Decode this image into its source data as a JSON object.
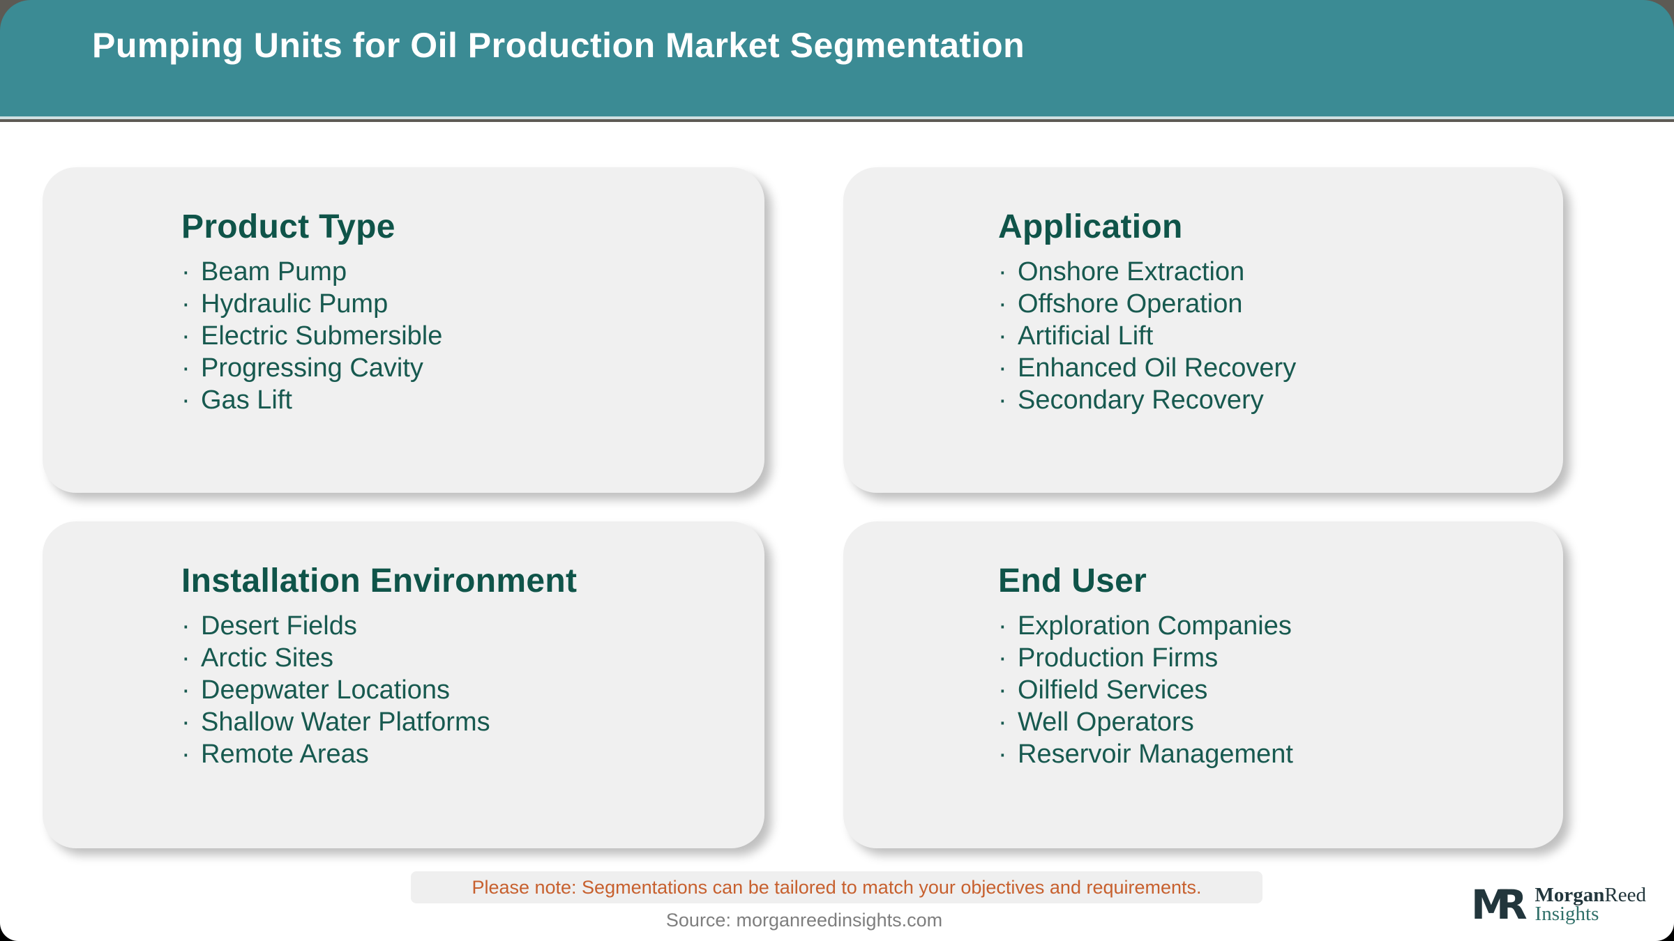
{
  "header": {
    "title": "Pumping Units for Oil Production Market Segmentation"
  },
  "bullet_char": "·",
  "cards": [
    {
      "title": "Product Type",
      "items": [
        "Beam Pump",
        "Hydraulic Pump",
        "Electric Submersible",
        "Progressing Cavity",
        "Gas Lift"
      ]
    },
    {
      "title": "Application",
      "items": [
        "Onshore Extraction",
        "Offshore Operation",
        "Artificial Lift",
        "Enhanced Oil Recovery",
        "Secondary Recovery"
      ]
    },
    {
      "title": "Installation Environment",
      "items": [
        "Desert Fields",
        "Arctic Sites",
        "Deepwater Locations",
        "Shallow Water Platforms",
        "Remote Areas"
      ]
    },
    {
      "title": "End User",
      "items": [
        "Exploration Companies",
        "Production Firms",
        "Oilfield Services",
        "Well Operators",
        "Reservoir Management"
      ]
    }
  ],
  "note": {
    "text": "Please note: Segmentations can be tailored to match your objectives and requirements."
  },
  "source": {
    "text": "Source: morganreedinsights.com"
  },
  "logo": {
    "monogram_m": "M",
    "monogram_r": "R",
    "brand_bold": "Morgan",
    "brand_regular": "Reed",
    "tagline": "Insights"
  },
  "colors": {
    "header_bg": "#3b8b94",
    "card_bg": "#f0f0f0",
    "card_title_text": "#0f5449",
    "card_item_text": "#17594f",
    "note_text": "#c7602e",
    "note_bg": "#efefef",
    "source_text": "#7e7e7e",
    "logo_navy": "#22363c",
    "logo_teal": "#2f6f68"
  }
}
